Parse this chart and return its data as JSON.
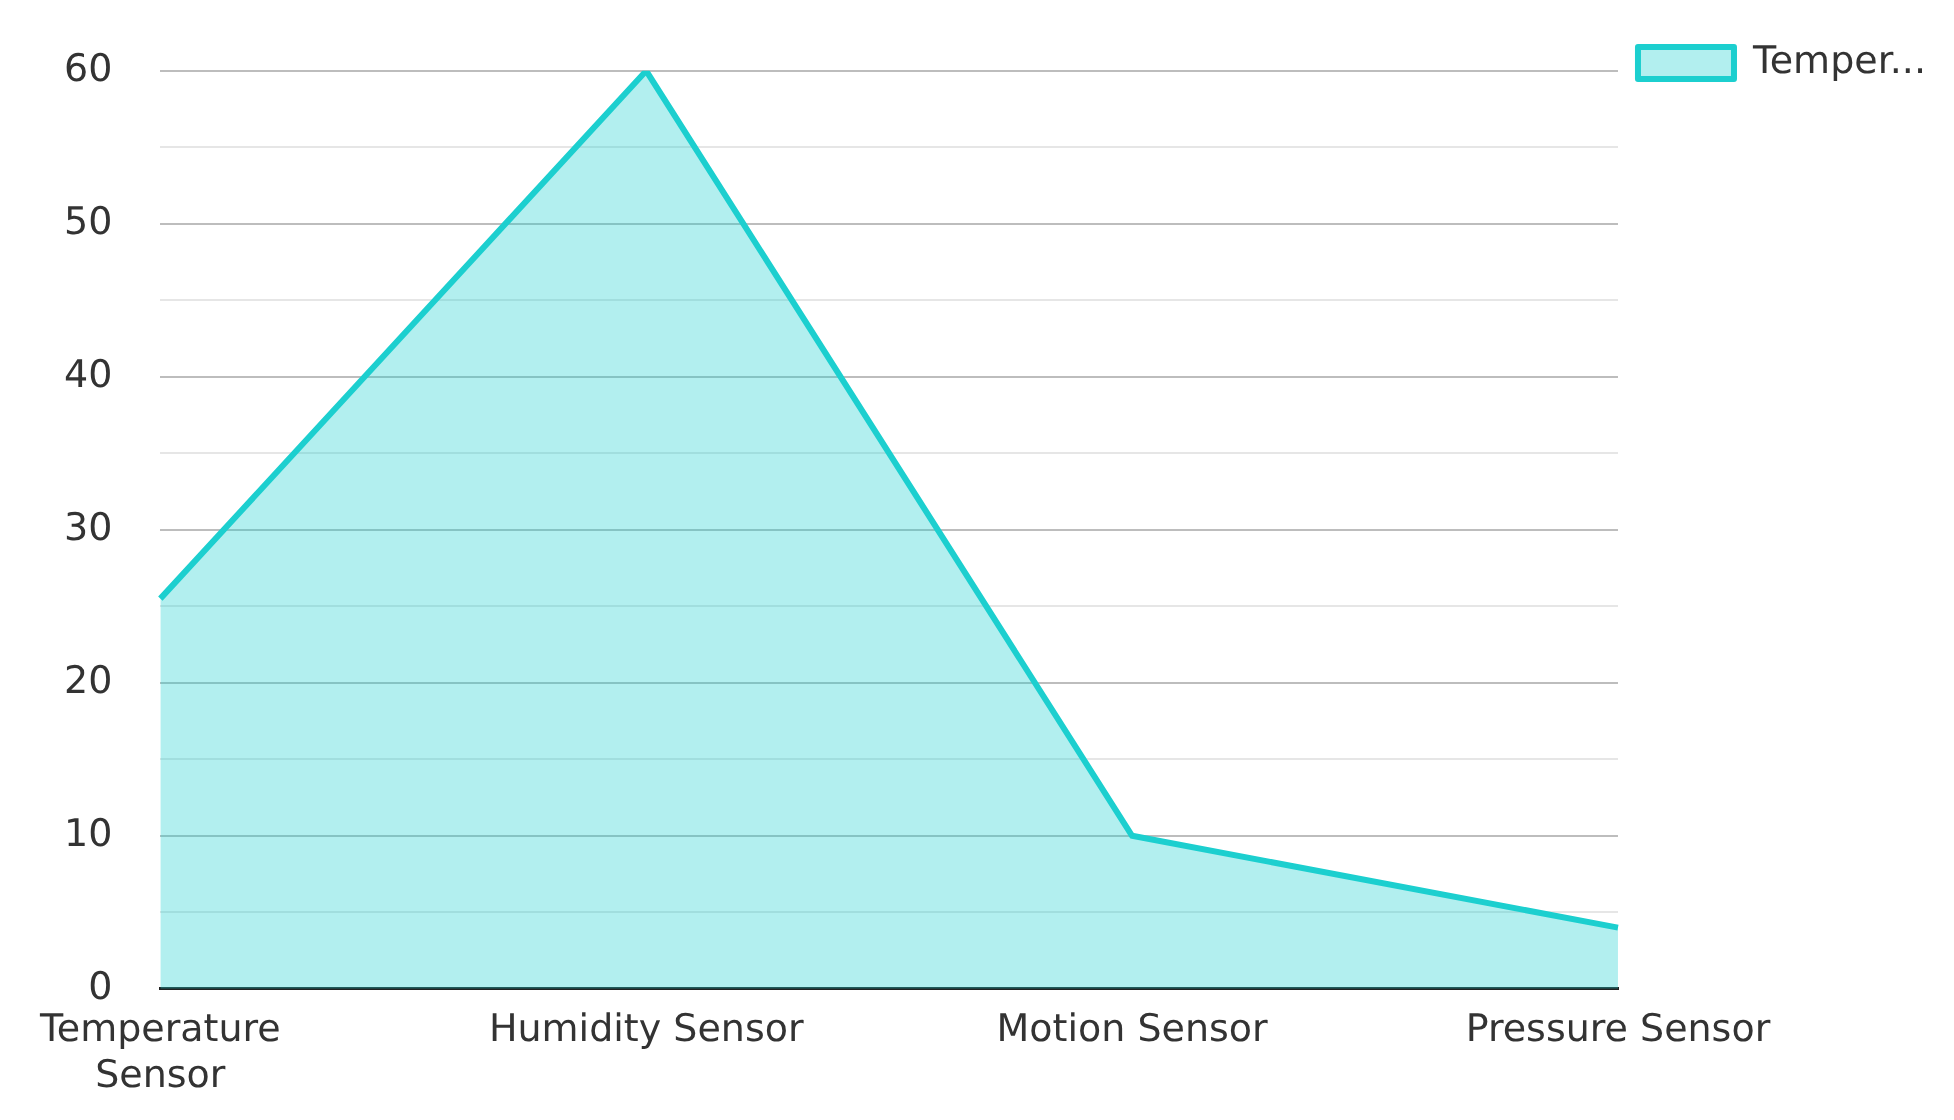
{
  "chart_data": {
    "type": "area",
    "categories": [
      "Temperature Sensor",
      "Humidity Sensor",
      "Motion Sensor",
      "Pressure Sensor"
    ],
    "series": [
      {
        "name": "Temper...",
        "color": "#1ccfcf",
        "values": [
          25.5,
          60,
          10,
          4
        ]
      }
    ],
    "ylim": [
      0,
      60
    ],
    "yticks": [
      0,
      {
        "value": 5,
        "label": null
      },
      10,
      {
        "value": 15,
        "label": null
      },
      20,
      {
        "value": 25,
        "label": null
      },
      30,
      {
        "value": 35,
        "label": null
      },
      40,
      {
        "value": 45,
        "label": null
      },
      50,
      {
        "value": 55,
        "label": null
      },
      60
    ],
    "grid": "y",
    "legend": "top right",
    "marker": "none"
  }
}
